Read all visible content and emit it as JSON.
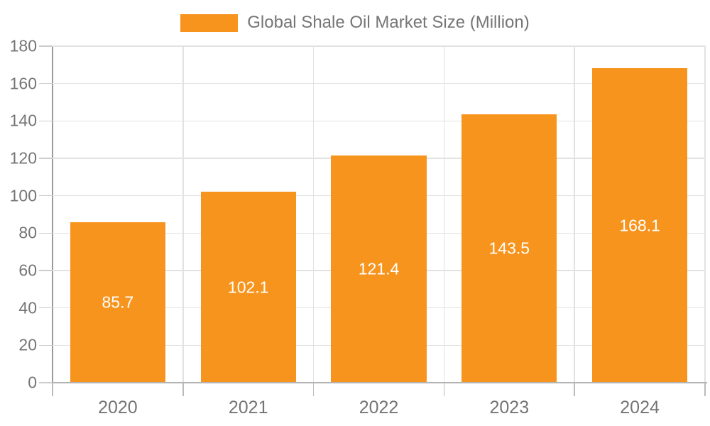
{
  "legend": {
    "label": "Global Shale Oil Market Size (Million)"
  },
  "chart_data": {
    "type": "bar",
    "title": "Global Shale Oil Market Size (Million)",
    "categories": [
      "2020",
      "2021",
      "2022",
      "2023",
      "2024"
    ],
    "values": [
      85.7,
      102.1,
      121.4,
      143.5,
      168.1
    ],
    "value_labels": [
      "85.7",
      "102.1",
      "121.4",
      "143.5",
      "168.1"
    ],
    "xlabel": "",
    "ylabel": "",
    "ylim": [
      0,
      180
    ],
    "yticks": [
      0,
      20,
      40,
      60,
      80,
      100,
      120,
      140,
      160,
      180
    ],
    "grid": true,
    "legend_position": "top-center",
    "series_name": "Global Shale Oil Market Size (Million)"
  },
  "colors": {
    "bar": "#F7941E",
    "value_label": "#ffffff",
    "axis_text": "#757575",
    "gridline": "#e2e2e2",
    "y_axis_line": "#9a9a9a",
    "x_axis_line": "#b3b3b3"
  }
}
